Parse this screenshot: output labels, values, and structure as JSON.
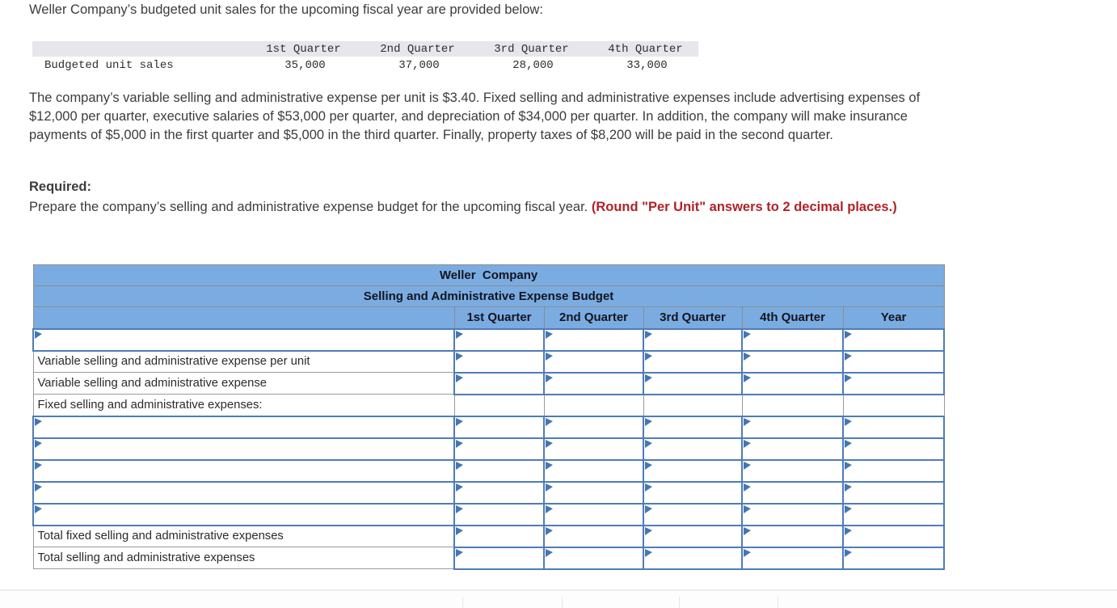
{
  "colors": {
    "table_header_blue": "#7AACE2",
    "input_border_blue": "#4E7CB8",
    "marker_blue": "#4576B4",
    "note_red": "#B02227",
    "band_gray": "#E7E6EA",
    "grid_gray": "#9A9A9A"
  },
  "intro": "Weller Company’s budgeted unit sales for the upcoming fiscal year are provided below:",
  "unit_sales": {
    "columns": [
      "1st Quarter",
      "2nd Quarter",
      "3rd Quarter",
      "4th Quarter"
    ],
    "row_label": "Budgeted unit sales",
    "values": [
      "35,000",
      "37,000",
      "28,000",
      "33,000"
    ]
  },
  "paragraph": "The company’s variable selling and administrative expense per unit is $3.40. Fixed selling and administrative expenses include advertising expenses of $12,000 per quarter, executive salaries of $53,000 per quarter, and depreciation of $34,000 per quarter. In addition, the company will make insurance payments of $5,000 in the first quarter and $5,000 in the third quarter. Finally, property taxes of $8,200 will be paid in the second quarter.",
  "required": {
    "heading": "Required:",
    "text": "Prepare the company’s selling and administrative expense budget for the upcoming fiscal year. ",
    "note": "(Round \"Per Unit\" answers to 2 decimal places.)"
  },
  "budget_table": {
    "title": "Weller  Company",
    "subtitle": "Selling and Administrative Expense Budget",
    "columns": [
      "1st Quarter",
      "2nd Quarter",
      "3rd Quarter",
      "4th Quarter",
      "Year"
    ],
    "rows": [
      {
        "label": "",
        "label_input": true,
        "cells": "input"
      },
      {
        "label": "Variable selling and administrative expense per unit",
        "label_input": false,
        "cells": "input"
      },
      {
        "label": "Variable selling and administrative expense",
        "label_input": false,
        "cells": "input"
      },
      {
        "label": "Fixed selling and administrative expenses:",
        "label_input": false,
        "cells": "plain"
      },
      {
        "label": "",
        "label_input": true,
        "cells": "input"
      },
      {
        "label": "",
        "label_input": true,
        "cells": "input"
      },
      {
        "label": "",
        "label_input": true,
        "cells": "input"
      },
      {
        "label": "",
        "label_input": true,
        "cells": "input"
      },
      {
        "label": "",
        "label_input": true,
        "cells": "input"
      },
      {
        "label": "Total fixed selling and administrative expenses",
        "label_input": false,
        "cells": "input"
      },
      {
        "label": "Total selling and administrative expenses",
        "label_input": false,
        "cells": "input"
      }
    ]
  }
}
